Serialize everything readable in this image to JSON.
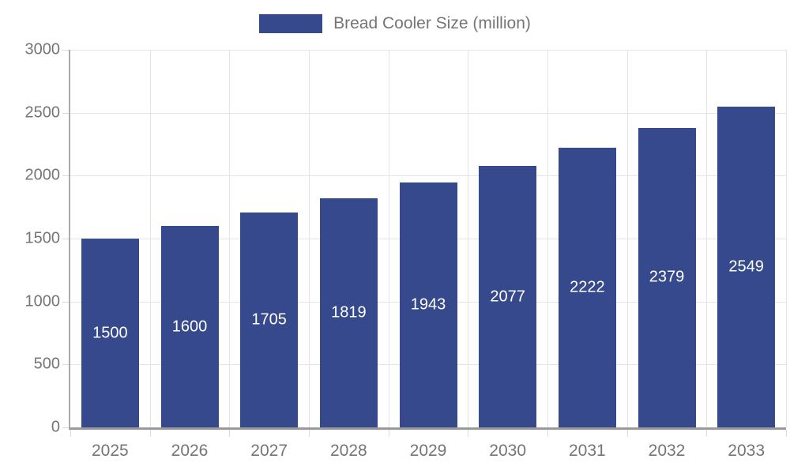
{
  "legend": {
    "label": "Bread Cooler Size (million)"
  },
  "colors": {
    "bar": "#36498D",
    "axis_text": "#757575",
    "grid": "#e4e4e4",
    "axis_line": "#9a9a9a",
    "value_label": "#ffffff",
    "background": "#ffffff"
  },
  "chart_data": {
    "type": "bar",
    "title": "Bread Cooler Size (million)",
    "categories": [
      "2025",
      "2026",
      "2027",
      "2028",
      "2029",
      "2030",
      "2031",
      "2032",
      "2033"
    ],
    "values": [
      1500,
      1600,
      1705,
      1819,
      1943,
      2077,
      2222,
      2379,
      2549
    ],
    "xlabel": "",
    "ylabel": "",
    "ylim": [
      0,
      3000
    ],
    "y_ticks": [
      0,
      500,
      1000,
      1500,
      2000,
      2500,
      3000
    ],
    "grid": true,
    "legend_position": "top",
    "value_labels": "inside-center"
  }
}
